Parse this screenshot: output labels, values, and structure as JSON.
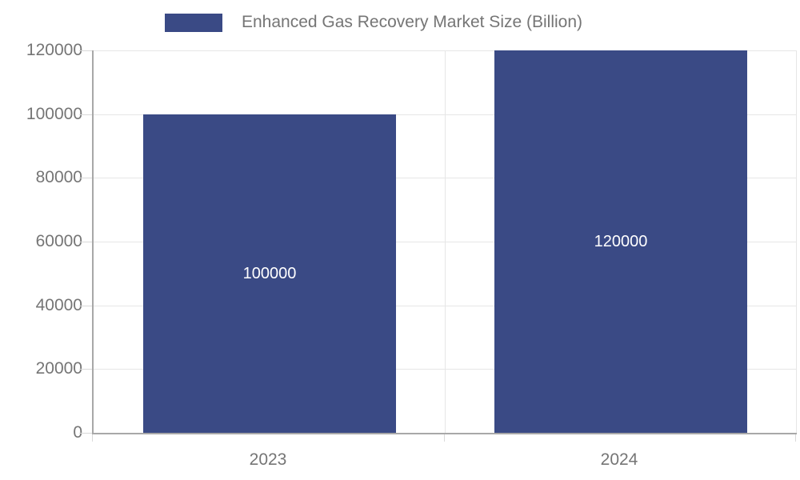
{
  "legend": {
    "label": "Enhanced Gas Recovery Market Size (Billion)"
  },
  "chart_data": {
    "type": "bar",
    "title": "Enhanced Gas Recovery Market Size (Billion)",
    "categories": [
      "2023",
      "2024"
    ],
    "series": [
      {
        "name": "Enhanced Gas Recovery Market Size (Billion)",
        "values": [
          100000,
          120000
        ]
      }
    ],
    "value_labels": [
      "100000",
      "120000"
    ],
    "y_ticks": [
      0,
      20000,
      40000,
      60000,
      80000,
      100000,
      120000
    ],
    "ylim": [
      0,
      120000
    ],
    "xlabel": "",
    "ylabel": "",
    "grid": true,
    "legend_position": "top",
    "colors": {
      "bar": "#3A4A85",
      "axis": "#a8a8a8",
      "grid": "#e6e6e6",
      "tick_text": "#757575",
      "value_label": "#ffffff",
      "background": "#ffffff"
    }
  }
}
